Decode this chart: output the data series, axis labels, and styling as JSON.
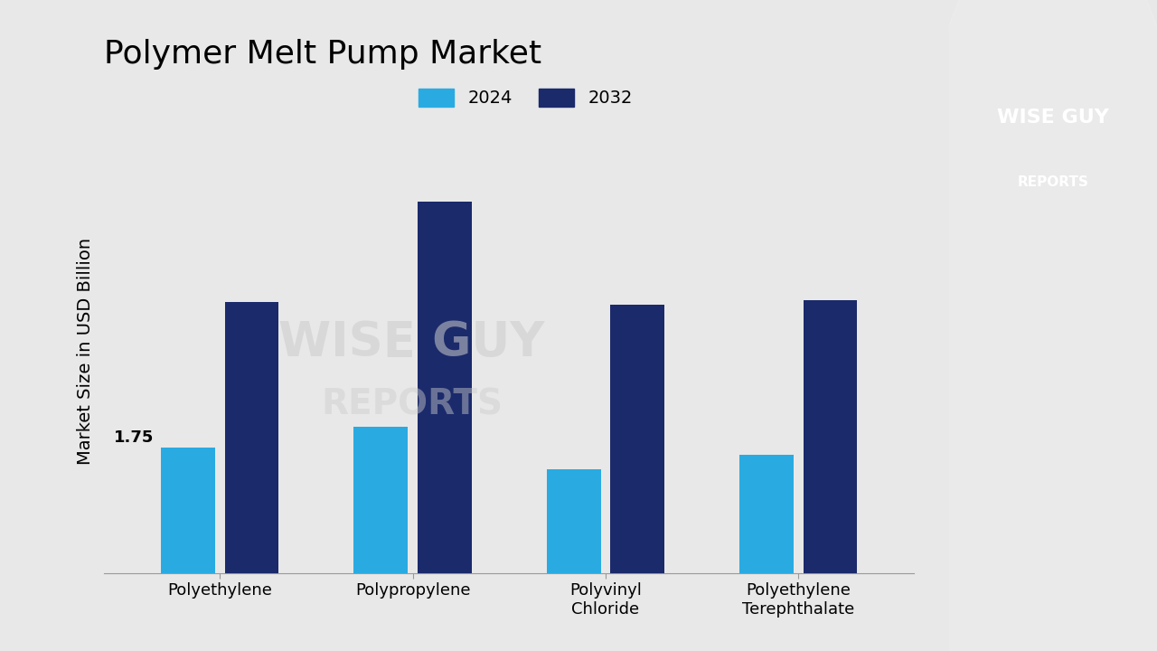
{
  "title": "Polymer Melt Pump Market",
  "ylabel": "Market Size in USD Billion",
  "categories": [
    "Polyethylene",
    "Polypropylene",
    "Polyvinyl\nChloride",
    "Polyethylene\nTerephthalate"
  ],
  "values_2024": [
    1.75,
    2.05,
    1.45,
    1.65
  ],
  "values_2032": [
    3.8,
    5.2,
    3.75,
    3.82
  ],
  "color_2024": "#29ABE2",
  "color_2032": "#1B2A6B",
  "bg_color": "#E8E8E8",
  "right_panel_color": "#1B2A6B",
  "label_2024": "2024",
  "label_2032": "2032",
  "annotation_value": "1.75",
  "annotation_category_idx": 0,
  "title_fontsize": 26,
  "legend_fontsize": 14,
  "ylabel_fontsize": 14,
  "tick_fontsize": 13,
  "ylim": [
    0,
    6.2
  ]
}
